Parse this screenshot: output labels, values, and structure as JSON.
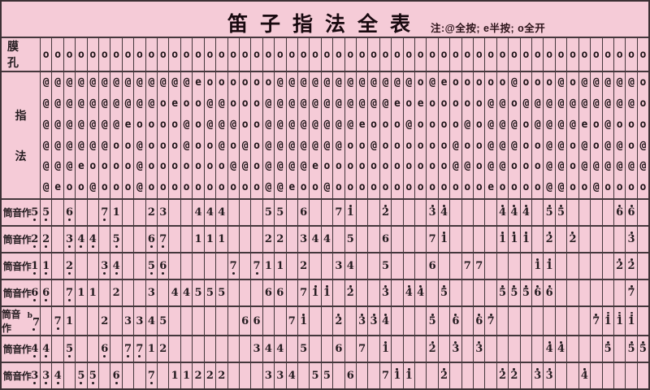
{
  "chart_data": {
    "type": "table",
    "title": "笛子指法全表",
    "legend_note": "注:@全按; e半按; o全开",
    "symbol_legend": {
      "@": "全按",
      "e": "半按",
      "o": "全开"
    },
    "columns": 52,
    "row_headers": {
      "membrane": "膜孔",
      "fingering": "指法"
    },
    "tone_label_prefix": "筒音作",
    "notation_key": {
      "'": "octave dot above",
      ",": "octave dot below",
      "b": "flat sign"
    },
    "membrane_row": [
      "o",
      "o",
      "o",
      "o",
      "o",
      "o",
      "o",
      "o",
      "o",
      "o",
      "o",
      "o",
      "o",
      "o",
      "o",
      "o",
      "o",
      "o",
      "o",
      "o",
      "o",
      "o",
      "o",
      "o",
      "o",
      "o",
      "o",
      "o",
      "o",
      "o",
      "o",
      "o",
      "o",
      "o",
      "o",
      "o",
      "o",
      "o",
      "o",
      "o",
      "o",
      "o",
      "o",
      "o",
      "o",
      "o",
      "o",
      "o",
      "o",
      "o",
      "o",
      "o"
    ],
    "fingering_columns": [
      "@@@@@@",
      "@@@@@e",
      "@@@@@o",
      "@@@@eo",
      "@@@@o@",
      "@@@@oo",
      "@@@ooo",
      "@@eooo",
      "@@o@@@",
      "@@oooo",
      "@ooooo",
      "@eoooo",
      "@o@@oo",
      "eooooo",
      "o@@ooo",
      "o@@@oo",
      "oo@o@o",
      "ooo@@o",
      "oooooo",
      "o@@@@@",
      "@@@@@@",
      "@@@@@e",
      "@@@@@o",
      "@@@@eo",
      "@@@@o@",
      "@@@@oo",
      "@@@ooo",
      "@@eooo",
      "@@o@oo",
      "@@oooo",
      "@eoooo",
      "@o@ooo",
      "oeoooo",
      "@ooooo",
      "eooooo",
      "ooo@@o",
      "oo@o@o",
      "oooooo",
      "o@@@@e",
      "o@@@@o",
      "@o@@oo",
      "o@oooo",
      "o@@ooo",
      "o@@@@@",
      "@@@@@@",
      "o@@ooo",
      "@@e@@o",
      "@@oo@@",
      "@@@@@o",
      "@@o@@o",
      "@@oo@o",
      "ooo@@o"
    ],
    "tone_rows": [
      {
        "label": "5,",
        "cells": {
          "1": "5,",
          "3": "6,",
          "6": "7,",
          "7": "1",
          "10": "2",
          "11": "3",
          "14": "4",
          "15": "4",
          "16": "4",
          "20": "5",
          "21": "5",
          "23": "6",
          "26": "7",
          "27": "1'",
          "30": "2'",
          "34": "3'",
          "35": "4'",
          "40": "4'",
          "41": "4'",
          "42": "4'",
          "44": "5'",
          "45": "5'",
          "50": "6'",
          "51": "6'"
        }
      },
      {
        "label": "2,",
        "cells": {
          "1": "2,",
          "3": "3,",
          "4": "4,",
          "5": "4,",
          "7": "5,",
          "10": "6,",
          "11": "7,",
          "14": "1",
          "15": "1",
          "16": "1",
          "20": "2",
          "21": "2",
          "23": "3",
          "24": "4",
          "25": "4",
          "27": "5",
          "30": "6",
          "34": "7",
          "35": "1'",
          "40": "1'",
          "41": "1'",
          "42": "1'",
          "44": "2'",
          "46": "2'",
          "51": "3'"
        }
      },
      {
        "label": "1,",
        "cells": {
          "1": "1,",
          "3": "2,",
          "6": "3,",
          "7": "4,",
          "10": "5,",
          "11": "6,",
          "17": "7,",
          "19": "7,",
          "20": "1",
          "21": "1",
          "23": "2",
          "26": "3",
          "27": "4",
          "30": "5",
          "34": "6",
          "37": "7",
          "38": "7",
          "43": "1'",
          "44": "1'",
          "50": "2'",
          "51": "2'"
        }
      },
      {
        "label": "6,",
        "cells": {
          "1": "6,",
          "3": "7,",
          "4": "1",
          "5": "1",
          "7": "2",
          "10": "3",
          "12": "4",
          "13": "4",
          "14": "5",
          "15": "5",
          "16": "5",
          "20": "6",
          "21": "6",
          "23": "7",
          "24": "1'",
          "25": "1'",
          "27": "2'",
          "30": "3'",
          "32": "4'",
          "33": "4'",
          "35": "5'",
          "40": "5'",
          "41": "5'",
          "42": "5'",
          "43": "6'",
          "44": "6'",
          "51": "7'"
        }
      },
      {
        "label": "b7,",
        "cells": {
          "2": "7,",
          "3": "1",
          "6": "2",
          "8": "3",
          "9": "3",
          "10": "4",
          "11": "5",
          "18": "6",
          "19": "6",
          "22": "7",
          "23": "1'",
          "26": "2'",
          "28": "3'",
          "29": "3'",
          "30": "4'",
          "34": "5'",
          "36": "6'",
          "38": "6'",
          "39": "7'",
          "48": "7'",
          "49": "1''",
          "50": "1''",
          "51": "1''"
        }
      },
      {
        "label": "4,",
        "cells": {
          "1": "4,",
          "3": "5,",
          "6": "6,",
          "8": "7,",
          "9": "7,",
          "10": "1",
          "11": "2",
          "19": "3",
          "20": "4",
          "21": "4",
          "23": "5",
          "26": "6",
          "28": "7",
          "30": "1'",
          "34": "2'",
          "36": "3'",
          "38": "3'",
          "44": "4'",
          "45": "4'",
          "49": "5'",
          "51": "5'",
          "52": "5'"
        }
      },
      {
        "label": "3,",
        "cells": {
          "1": "3,",
          "2": "4,",
          "4": "5,",
          "5": "5,",
          "7": "6,",
          "10": "7,",
          "12": "1",
          "13": "1",
          "14": "2",
          "15": "2",
          "16": "2",
          "20": "3",
          "21": "3",
          "22": "4",
          "24": "5",
          "25": "5",
          "27": "6",
          "30": "7",
          "31": "1'",
          "32": "1'",
          "35": "2'",
          "40": "2'",
          "41": "2'",
          "43": "3'",
          "44": "3'",
          "47": "4'"
        }
      }
    ]
  }
}
